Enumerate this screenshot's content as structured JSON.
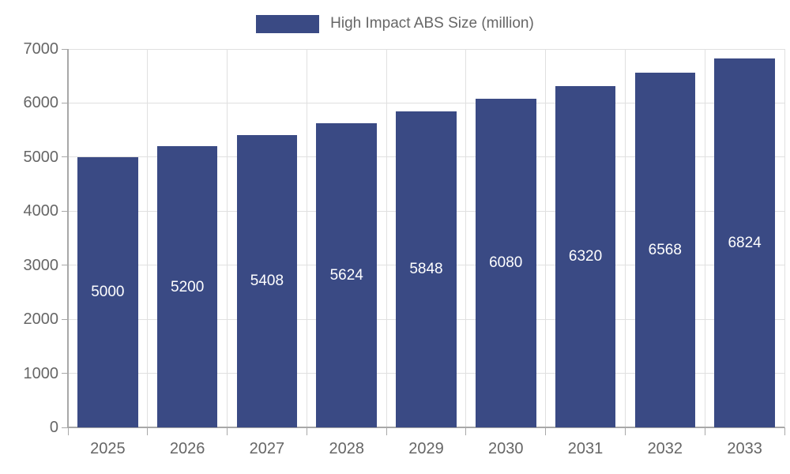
{
  "chart_data": {
    "type": "bar",
    "title": "High Impact ABS Size (million)",
    "categories": [
      "2025",
      "2026",
      "2027",
      "2028",
      "2029",
      "2030",
      "2031",
      "2032",
      "2033"
    ],
    "values": [
      5000,
      5200,
      5408,
      5624,
      5848,
      6080,
      6320,
      6568,
      6824
    ],
    "series": [
      {
        "name": "High Impact ABS Size (million)",
        "values": [
          5000,
          5200,
          5408,
          5624,
          5848,
          6080,
          6320,
          6568,
          6824
        ]
      }
    ],
    "xlabel": "",
    "ylabel": "",
    "ylim": [
      0,
      7000
    ],
    "yticks": [
      0,
      1000,
      2000,
      3000,
      4000,
      5000,
      6000,
      7000
    ],
    "grid": true,
    "legend_position": "top",
    "bar_labels_inside": true,
    "colors": {
      "bar": "#3A4A84",
      "bar_label": "#FFFFFF",
      "axis_text": "#666666",
      "legend_text": "#666666",
      "gridline": "#E0E0E0",
      "axis_line": "#A8A8A8",
      "background": "#FFFFFF"
    }
  }
}
